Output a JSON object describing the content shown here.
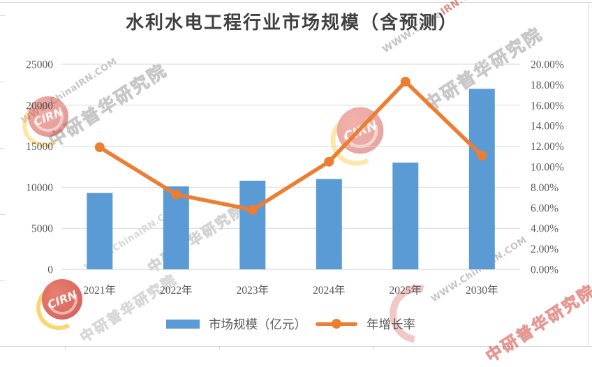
{
  "chart_data": {
    "type": "combo-bar-line",
    "title": "水利水电工程行业市场规模（含预测）",
    "categories": [
      "2021年",
      "2022年",
      "2023年",
      "2024年",
      "2025年",
      "2030年"
    ],
    "series": [
      {
        "name": "市场规模（亿元）",
        "type": "bar",
        "axis": "left",
        "color": "#5B9BD5",
        "values": [
          9300,
          10100,
          10800,
          11000,
          13000,
          22000
        ]
      },
      {
        "name": "年增长率",
        "type": "line",
        "axis": "right",
        "color": "#ED7D31",
        "values_pct": [
          11.9,
          7.3,
          5.8,
          10.5,
          18.3,
          11.1
        ]
      }
    ],
    "left_axis": {
      "min": 0,
      "max": 25000,
      "step": 5000,
      "ticks": [
        "25000",
        "20000",
        "15000",
        "10000",
        "5000",
        "0"
      ]
    },
    "right_axis": {
      "min": 0,
      "max": 0.2,
      "step": 0.02,
      "ticks": [
        "20.00%",
        "18.00%",
        "16.00%",
        "14.00%",
        "12.00%",
        "10.00%",
        "8.00%",
        "6.00%",
        "4.00%",
        "2.00%",
        "0.00%"
      ]
    },
    "grid": true,
    "legend_position": "bottom",
    "gridline_color": "#d9d9d9"
  },
  "watermarks": {
    "site_url": "WWW.ChinaIRN.COM",
    "site_url_parts": [
      "WWW.China",
      "IRN",
      ".COM"
    ],
    "org_name": "中研普华研究院",
    "logo_abbr": "CIRN"
  }
}
